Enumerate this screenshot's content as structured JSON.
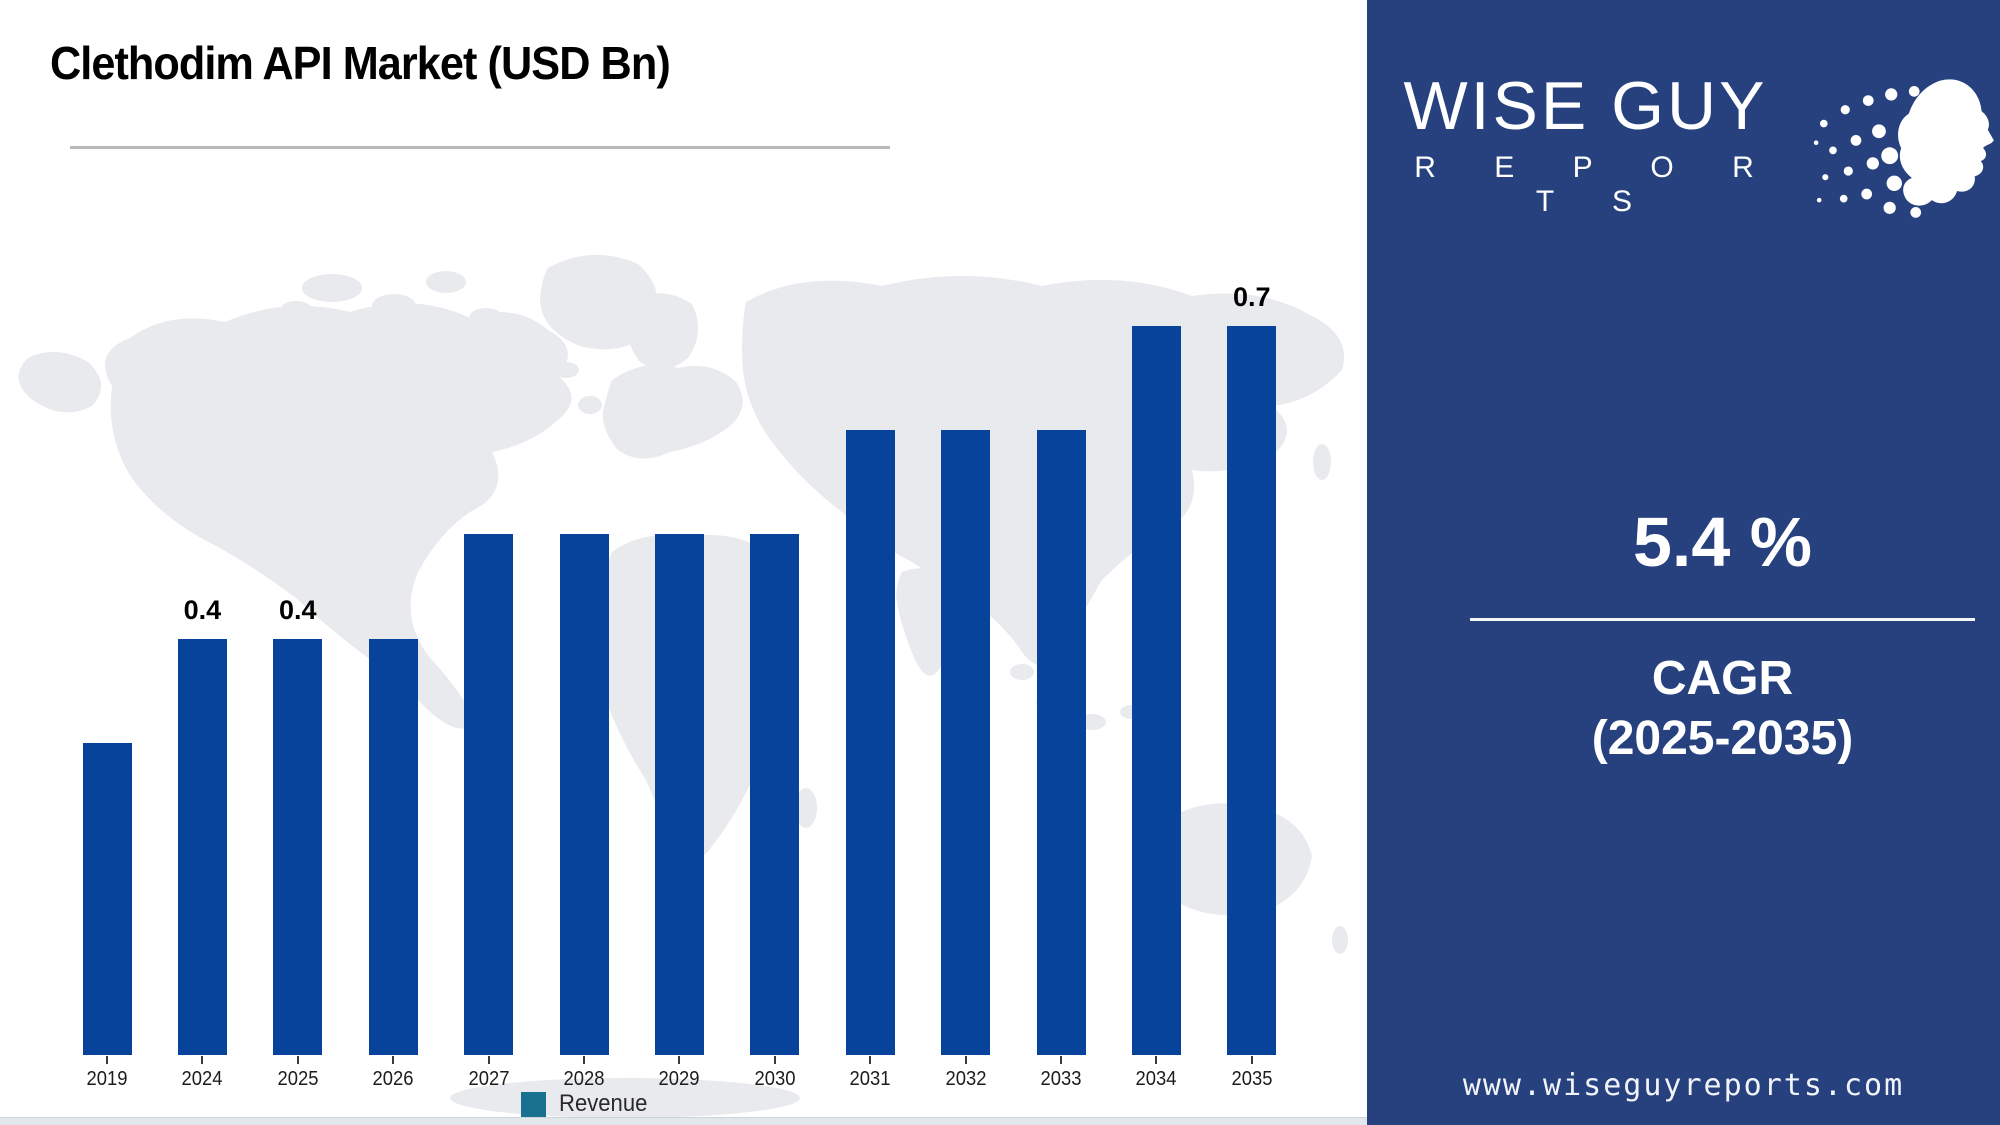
{
  "chart_data": {
    "type": "bar",
    "title": "Clethodim API Market (USD Bn)",
    "categories": [
      "2019",
      "2024",
      "2025",
      "2026",
      "2027",
      "2028",
      "2029",
      "2030",
      "2031",
      "2032",
      "2033",
      "2034",
      "2035"
    ],
    "values": [
      0.3,
      0.4,
      0.4,
      0.4,
      0.5,
      0.5,
      0.5,
      0.5,
      0.6,
      0.6,
      0.6,
      0.7,
      0.7
    ],
    "value_labels_shown": [
      "",
      "0.4",
      "0.4",
      "",
      "",
      "",
      "",
      "",
      "",
      "",
      "",
      "",
      "0.7"
    ],
    "series_name": "Revenue",
    "xlabel": "",
    "ylabel": "",
    "ylim": [
      0,
      0.75
    ],
    "grid": false,
    "legend_position": "bottom",
    "bar_color": "#07439b"
  },
  "legend": {
    "label": "Revenue",
    "swatch_color": "#19718f"
  },
  "panel": {
    "logo_line1": "WISE GUY",
    "logo_line2": "R E P O R T S",
    "cagr_value": "5.4 %",
    "cagr_label_line1": "CAGR",
    "cagr_label_line2": "(2025-2035)",
    "website": "www.wiseguyreports.com",
    "background_color": "#27417f"
  },
  "decoration": {
    "map_watermark_color": "#e8eaed",
    "title_underline_color": "#b9b9b9"
  }
}
